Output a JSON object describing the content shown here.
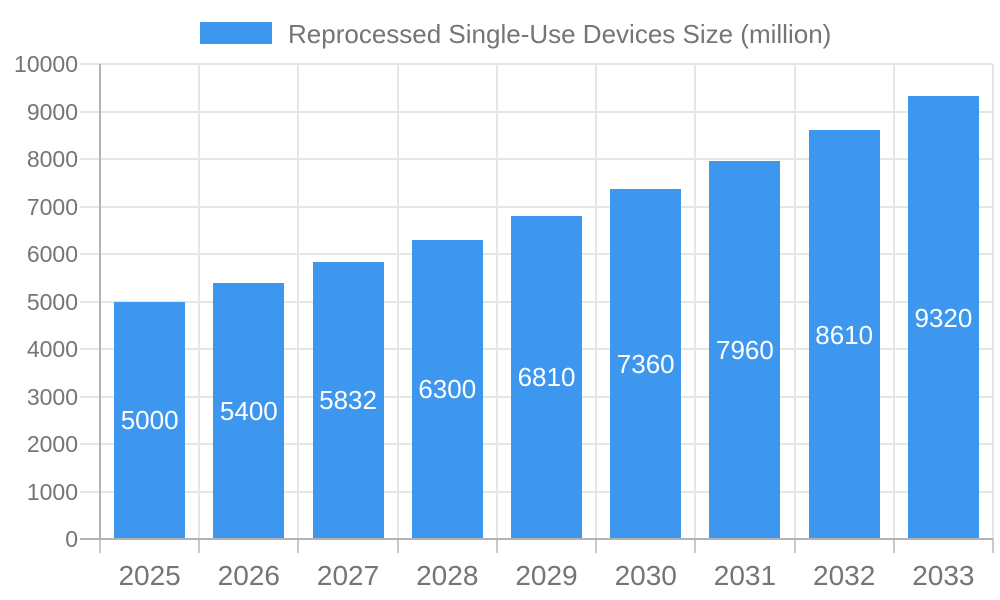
{
  "legend": {
    "label": "Reprocessed Single-Use Devices Size (million)"
  },
  "chart_data": {
    "type": "bar",
    "title": "Reprocessed Single-Use Devices Size (million)",
    "categories": [
      "2025",
      "2026",
      "2027",
      "2028",
      "2029",
      "2030",
      "2031",
      "2032",
      "2033"
    ],
    "series": [
      {
        "name": "Reprocessed Single-Use Devices Size (million)",
        "values": [
          5000,
          5400,
          5832,
          6300,
          6810,
          7360,
          7960,
          8610,
          9320
        ]
      }
    ],
    "value_labels": [
      "5000",
      "5400",
      "5832",
      "6300",
      "6810",
      "7360",
      "7960",
      "8610",
      "9320"
    ],
    "xlabel": "",
    "ylabel": "",
    "ylim": [
      0,
      10000
    ],
    "y_ticks": [
      0,
      1000,
      2000,
      3000,
      4000,
      5000,
      6000,
      7000,
      8000,
      9000,
      10000
    ],
    "grid": true,
    "legend_position": "top",
    "colors": {
      "bar": "#3D97EE",
      "grid_line": "#E6E6E6",
      "axis_line": "#B3B3B3",
      "tick": "#C9C9C9",
      "axis_text": "#757575",
      "value_label_text": "#FFFFFF",
      "background": "#FFFFFF"
    }
  }
}
